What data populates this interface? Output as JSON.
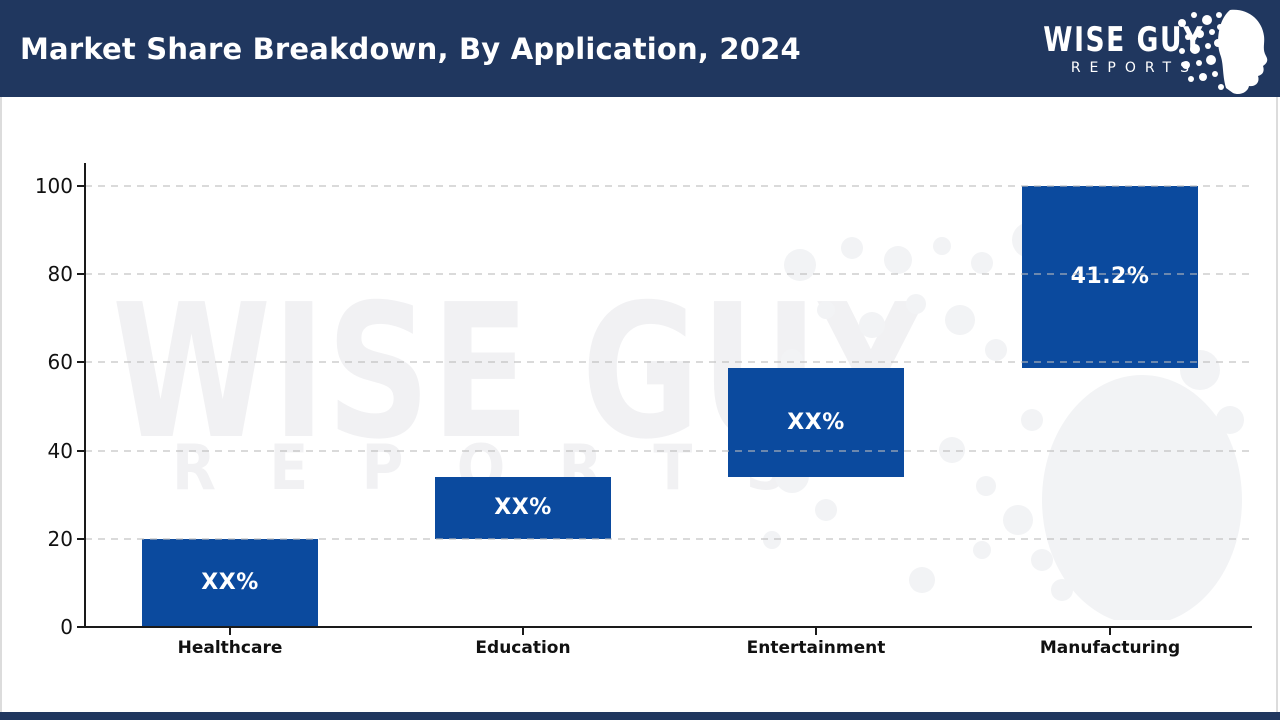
{
  "header": {
    "title": "Market Share Breakdown, By Application, 2024",
    "logo": {
      "wordmark": "WISE GUY",
      "subtext": "REPORTS"
    }
  },
  "watermark": {
    "wordmark": "WISE GUY",
    "subtext": "REPORTS"
  },
  "chart_data": {
    "type": "bar",
    "subtype": "floating-waterfall",
    "title": "Market Share Breakdown, By Application, 2024",
    "categories": [
      "Healthcare",
      "Education",
      "Entertainment",
      "Manufacturing"
    ],
    "segments": [
      {
        "category": "Healthcare",
        "start": 0,
        "end": 20,
        "label": "XX%"
      },
      {
        "category": "Education",
        "start": 20,
        "end": 34,
        "label": "XX%"
      },
      {
        "category": "Entertainment",
        "start": 34,
        "end": 58.8,
        "label": "XX%"
      },
      {
        "category": "Manufacturing",
        "start": 58.8,
        "end": 100,
        "label": "41.2%"
      }
    ],
    "ylim": [
      0,
      100
    ],
    "yticks": [
      0,
      20,
      40,
      60,
      80,
      100
    ],
    "xlabel": "",
    "ylabel": "",
    "grid": "horizontal-dashed",
    "legend": "none",
    "bar_color": "#0b4a9e",
    "bar_label_color": "#ffffff"
  },
  "colors": {
    "header_bg": "#20375f",
    "footer_bg": "#20375f",
    "bar": "#0b4a9e",
    "axis": "#1a1a1a",
    "tick_label": "#111111",
    "watermark": "#f1f1f3"
  }
}
